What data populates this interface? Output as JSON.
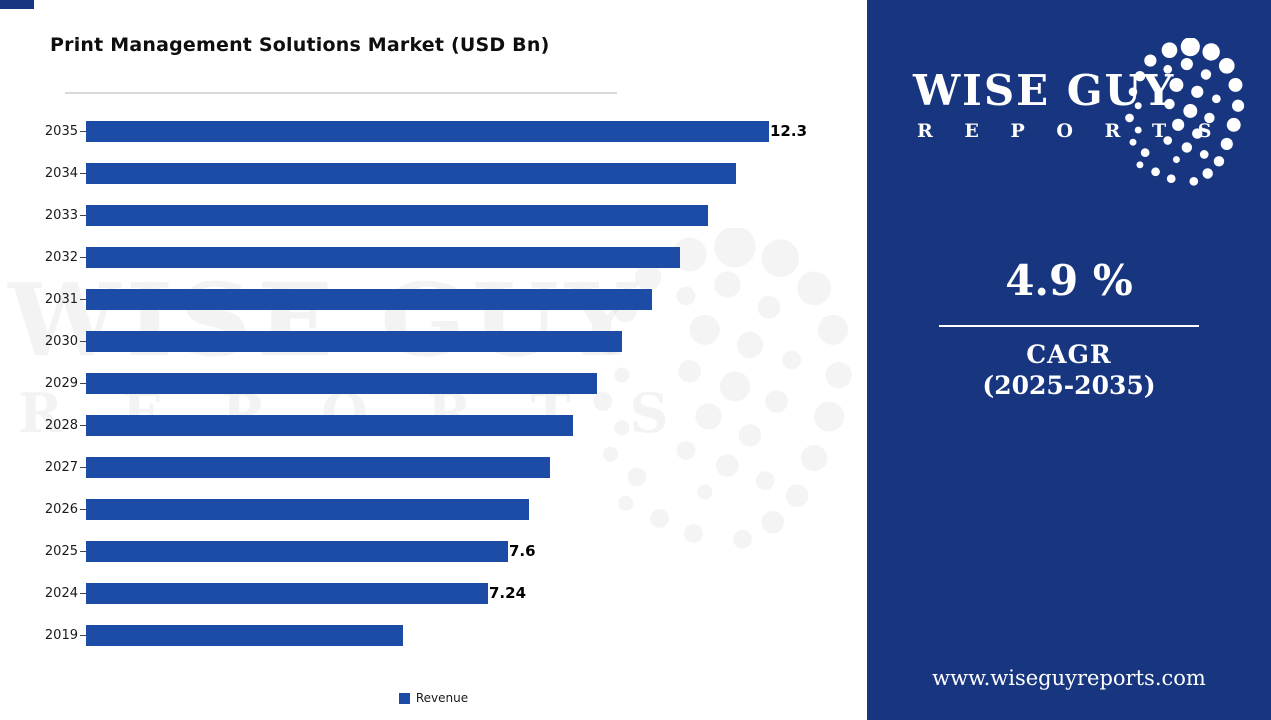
{
  "page": {
    "title": "Print Management Solutions Market (USD Bn)"
  },
  "chart_data": {
    "type": "bar",
    "orientation": "horizontal",
    "title": "Print Management Solutions Market (USD Bn)",
    "unit": "USD Bn",
    "categories": [
      "2035",
      "2034",
      "2033",
      "2032",
      "2031",
      "2030",
      "2029",
      "2028",
      "2027",
      "2026",
      "2025",
      "2024",
      "2019"
    ],
    "values": [
      12.3,
      11.7,
      11.2,
      10.7,
      10.2,
      9.65,
      9.2,
      8.77,
      8.36,
      7.97,
      7.6,
      7.24,
      5.7
    ],
    "value_labels": [
      "12.3",
      "",
      "",
      "",
      "",
      "",
      "",
      "",
      "",
      "",
      "7.6",
      "7.24",
      ""
    ],
    "xlim": [
      0,
      12.3
    ],
    "grid": false,
    "legend_entries": [
      "Revenue"
    ],
    "legend_position": "bottom"
  },
  "legend": {
    "label": "Revenue"
  },
  "watermark": {
    "line1": "WISE GUY",
    "line2": "R E P O R T S"
  },
  "side_panel": {
    "logo_line1": "WISE GUY",
    "logo_line2": "R E P O R T S",
    "cagr_value": "4.9 %",
    "cagr_title": "CAGR",
    "cagr_range": "(2025-2035)",
    "website": "www.wiseguyreports.com"
  },
  "colors": {
    "bar": "#1d4ca6",
    "panel_background": "#183680",
    "panel_text": "#ffffff"
  }
}
